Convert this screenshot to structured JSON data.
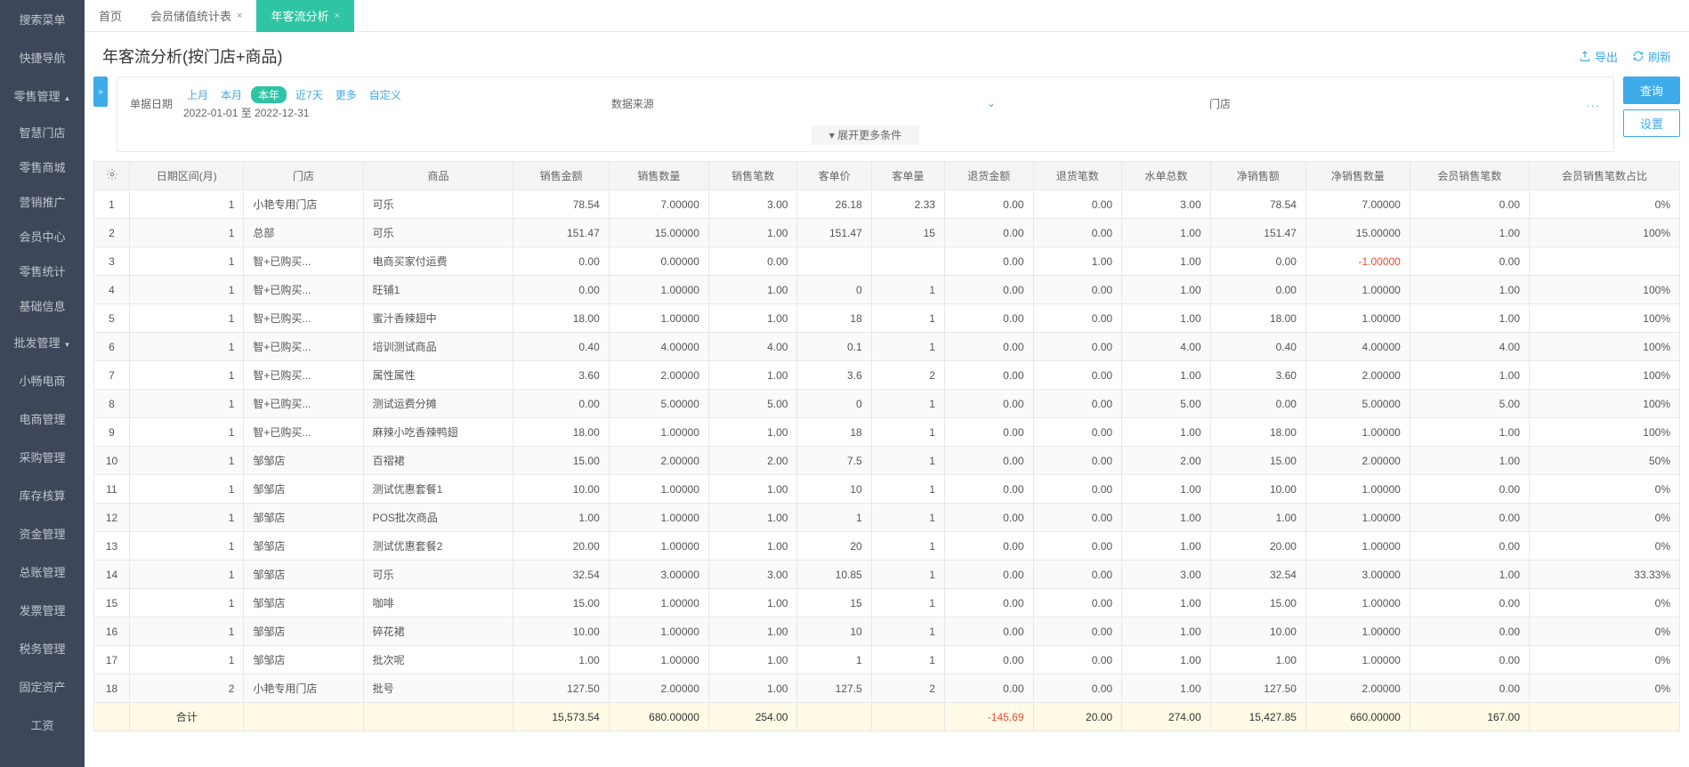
{
  "sidebar": {
    "items": [
      {
        "label": "搜索菜单",
        "type": "plain"
      },
      {
        "label": "快捷导航",
        "type": "plain"
      },
      {
        "label": "零售管理",
        "type": "expanded",
        "children": [
          {
            "label": "智慧门店"
          },
          {
            "label": "零售商城"
          },
          {
            "label": "营销推广"
          },
          {
            "label": "会员中心"
          },
          {
            "label": "零售统计"
          },
          {
            "label": "基础信息"
          }
        ]
      },
      {
        "label": "批发管理",
        "type": "collapsed"
      },
      {
        "label": "小畅电商",
        "type": "plain"
      },
      {
        "label": "电商管理",
        "type": "plain"
      },
      {
        "label": "采购管理",
        "type": "plain"
      },
      {
        "label": "库存核算",
        "type": "plain"
      },
      {
        "label": "资金管理",
        "type": "plain"
      },
      {
        "label": "总账管理",
        "type": "plain"
      },
      {
        "label": "发票管理",
        "type": "plain"
      },
      {
        "label": "税务管理",
        "type": "plain"
      },
      {
        "label": "固定资产",
        "type": "plain"
      },
      {
        "label": "工资",
        "type": "plain"
      }
    ]
  },
  "tabs": [
    {
      "label": "首页",
      "closable": false,
      "active": false
    },
    {
      "label": "会员储值统计表",
      "closable": true,
      "active": false
    },
    {
      "label": "年客流分析",
      "closable": true,
      "active": true
    }
  ],
  "page": {
    "title": "年客流分析(按门店+商品)",
    "export": "导出",
    "refresh": "刷新"
  },
  "filters": {
    "date_label": "单据日期",
    "shortcuts": [
      "上月",
      "本月",
      "本年",
      "近7天",
      "更多",
      "自定义"
    ],
    "active_shortcut": "本年",
    "date_range": "2022-01-01 至 2022-12-31",
    "source_label": "数据来源",
    "store_label": "门店",
    "expand_label": "展开更多条件",
    "query_btn": "查询",
    "settings_btn": "设置"
  },
  "table": {
    "columns": [
      "日期区间(月)",
      "门店",
      "商品",
      "销售金额",
      "销售数量",
      "销售笔数",
      "客单价",
      "客单量",
      "退货金额",
      "退货笔数",
      "水单总数",
      "净销售额",
      "净销售数量",
      "会员销售笔数",
      "会员销售笔数占比"
    ],
    "rows": [
      [
        "1",
        "小艳专用门店",
        "可乐",
        "78.54",
        "7.00000",
        "3.00",
        "26.18",
        "2.33",
        "0.00",
        "0.00",
        "3.00",
        "78.54",
        "7.00000",
        "0.00",
        "0%"
      ],
      [
        "1",
        "总部",
        "可乐",
        "151.47",
        "15.00000",
        "1.00",
        "151.47",
        "15",
        "0.00",
        "0.00",
        "1.00",
        "151.47",
        "15.00000",
        "1.00",
        "100%"
      ],
      [
        "1",
        "智+已购买...",
        "电商买家付运费",
        "0.00",
        "0.00000",
        "0.00",
        "",
        "",
        "0.00",
        "1.00",
        "1.00",
        "0.00",
        "-1.00000",
        "0.00",
        ""
      ],
      [
        "1",
        "智+已购买...",
        "旺铺1",
        "0.00",
        "1.00000",
        "1.00",
        "0",
        "1",
        "0.00",
        "0.00",
        "1.00",
        "0.00",
        "1.00000",
        "1.00",
        "100%"
      ],
      [
        "1",
        "智+已购买...",
        "蜜汁香辣翅中",
        "18.00",
        "1.00000",
        "1.00",
        "18",
        "1",
        "0.00",
        "0.00",
        "1.00",
        "18.00",
        "1.00000",
        "1.00",
        "100%"
      ],
      [
        "1",
        "智+已购买...",
        "培训测试商品",
        "0.40",
        "4.00000",
        "4.00",
        "0.1",
        "1",
        "0.00",
        "0.00",
        "4.00",
        "0.40",
        "4.00000",
        "4.00",
        "100%"
      ],
      [
        "1",
        "智+已购买...",
        "属性属性",
        "3.60",
        "2.00000",
        "1.00",
        "3.6",
        "2",
        "0.00",
        "0.00",
        "1.00",
        "3.60",
        "2.00000",
        "1.00",
        "100%"
      ],
      [
        "1",
        "智+已购买...",
        "测试运费分摊",
        "0.00",
        "5.00000",
        "5.00",
        "0",
        "1",
        "0.00",
        "0.00",
        "5.00",
        "0.00",
        "5.00000",
        "5.00",
        "100%"
      ],
      [
        "1",
        "智+已购买...",
        "麻辣小吃香辣鸭翅",
        "18.00",
        "1.00000",
        "1.00",
        "18",
        "1",
        "0.00",
        "0.00",
        "1.00",
        "18.00",
        "1.00000",
        "1.00",
        "100%"
      ],
      [
        "1",
        "邹邹店",
        "百褶裙",
        "15.00",
        "2.00000",
        "2.00",
        "7.5",
        "1",
        "0.00",
        "0.00",
        "2.00",
        "15.00",
        "2.00000",
        "1.00",
        "50%"
      ],
      [
        "1",
        "邹邹店",
        "测试优惠套餐1",
        "10.00",
        "1.00000",
        "1.00",
        "10",
        "1",
        "0.00",
        "0.00",
        "1.00",
        "10.00",
        "1.00000",
        "0.00",
        "0%"
      ],
      [
        "1",
        "邹邹店",
        "POS批次商品",
        "1.00",
        "1.00000",
        "1.00",
        "1",
        "1",
        "0.00",
        "0.00",
        "1.00",
        "1.00",
        "1.00000",
        "0.00",
        "0%"
      ],
      [
        "1",
        "邹邹店",
        "测试优惠套餐2",
        "20.00",
        "1.00000",
        "1.00",
        "20",
        "1",
        "0.00",
        "0.00",
        "1.00",
        "20.00",
        "1.00000",
        "0.00",
        "0%"
      ],
      [
        "1",
        "邹邹店",
        "可乐",
        "32.54",
        "3.00000",
        "3.00",
        "10.85",
        "1",
        "0.00",
        "0.00",
        "3.00",
        "32.54",
        "3.00000",
        "1.00",
        "33.33%"
      ],
      [
        "1",
        "邹邹店",
        "咖啡",
        "15.00",
        "1.00000",
        "1.00",
        "15",
        "1",
        "0.00",
        "0.00",
        "1.00",
        "15.00",
        "1.00000",
        "0.00",
        "0%"
      ],
      [
        "1",
        "邹邹店",
        "碎花裙",
        "10.00",
        "1.00000",
        "1.00",
        "10",
        "1",
        "0.00",
        "0.00",
        "1.00",
        "10.00",
        "1.00000",
        "0.00",
        "0%"
      ],
      [
        "1",
        "邹邹店",
        "批次呢",
        "1.00",
        "1.00000",
        "1.00",
        "1",
        "1",
        "0.00",
        "0.00",
        "1.00",
        "1.00",
        "1.00000",
        "0.00",
        "0%"
      ],
      [
        "2",
        "小艳专用门店",
        "批号",
        "127.50",
        "2.00000",
        "1.00",
        "127.5",
        "2",
        "0.00",
        "0.00",
        "1.00",
        "127.50",
        "2.00000",
        "0.00",
        "0%"
      ]
    ],
    "footer_label": "合计",
    "footer": [
      "",
      "",
      "",
      "15,573.54",
      "680.00000",
      "254.00",
      "",
      "",
      "-145.69",
      "20.00",
      "274.00",
      "15,427.85",
      "660.00000",
      "167.00",
      ""
    ]
  },
  "colors": {
    "sidebar_bg": "#3d4759",
    "accent_green": "#2fc4a4",
    "accent_blue": "#3daae9",
    "negative": "#e74c3c",
    "footer_bg": "#fffbe6",
    "header_bg": "#f5f5f5",
    "border": "#e8e8e8"
  }
}
